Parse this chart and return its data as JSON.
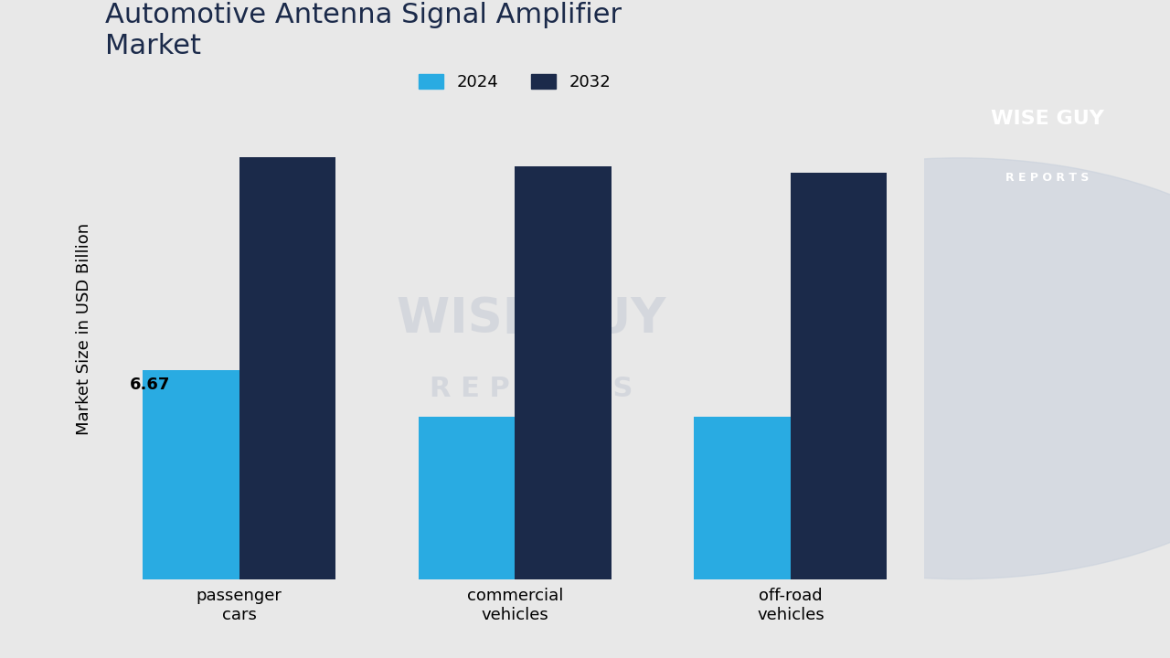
{
  "title": "Automotive Antenna Signal Amplifier\nMarket",
  "ylabel": "Market Size in USD Billion",
  "categories": [
    "passenger\ncars",
    "commercial\nvehicles",
    "off-road\nvehicles"
  ],
  "series": {
    "2024": [
      6.67,
      5.2,
      5.2
    ],
    "2032": [
      13.5,
      13.2,
      13.0
    ]
  },
  "colors": {
    "2024": "#29ABE2",
    "2032": "#1B2A4A"
  },
  "annotation_text": "6.67",
  "annotation_category_index": 0,
  "background_color": "#E8E8E8",
  "right_panel_color": "#1B2A4A",
  "title_color": "#1B2A4A",
  "bar_width": 0.35,
  "ylim": [
    0,
    16
  ],
  "title_fontsize": 22,
  "label_fontsize": 13,
  "tick_fontsize": 13,
  "legend_fontsize": 13,
  "annotation_fontsize": 13
}
